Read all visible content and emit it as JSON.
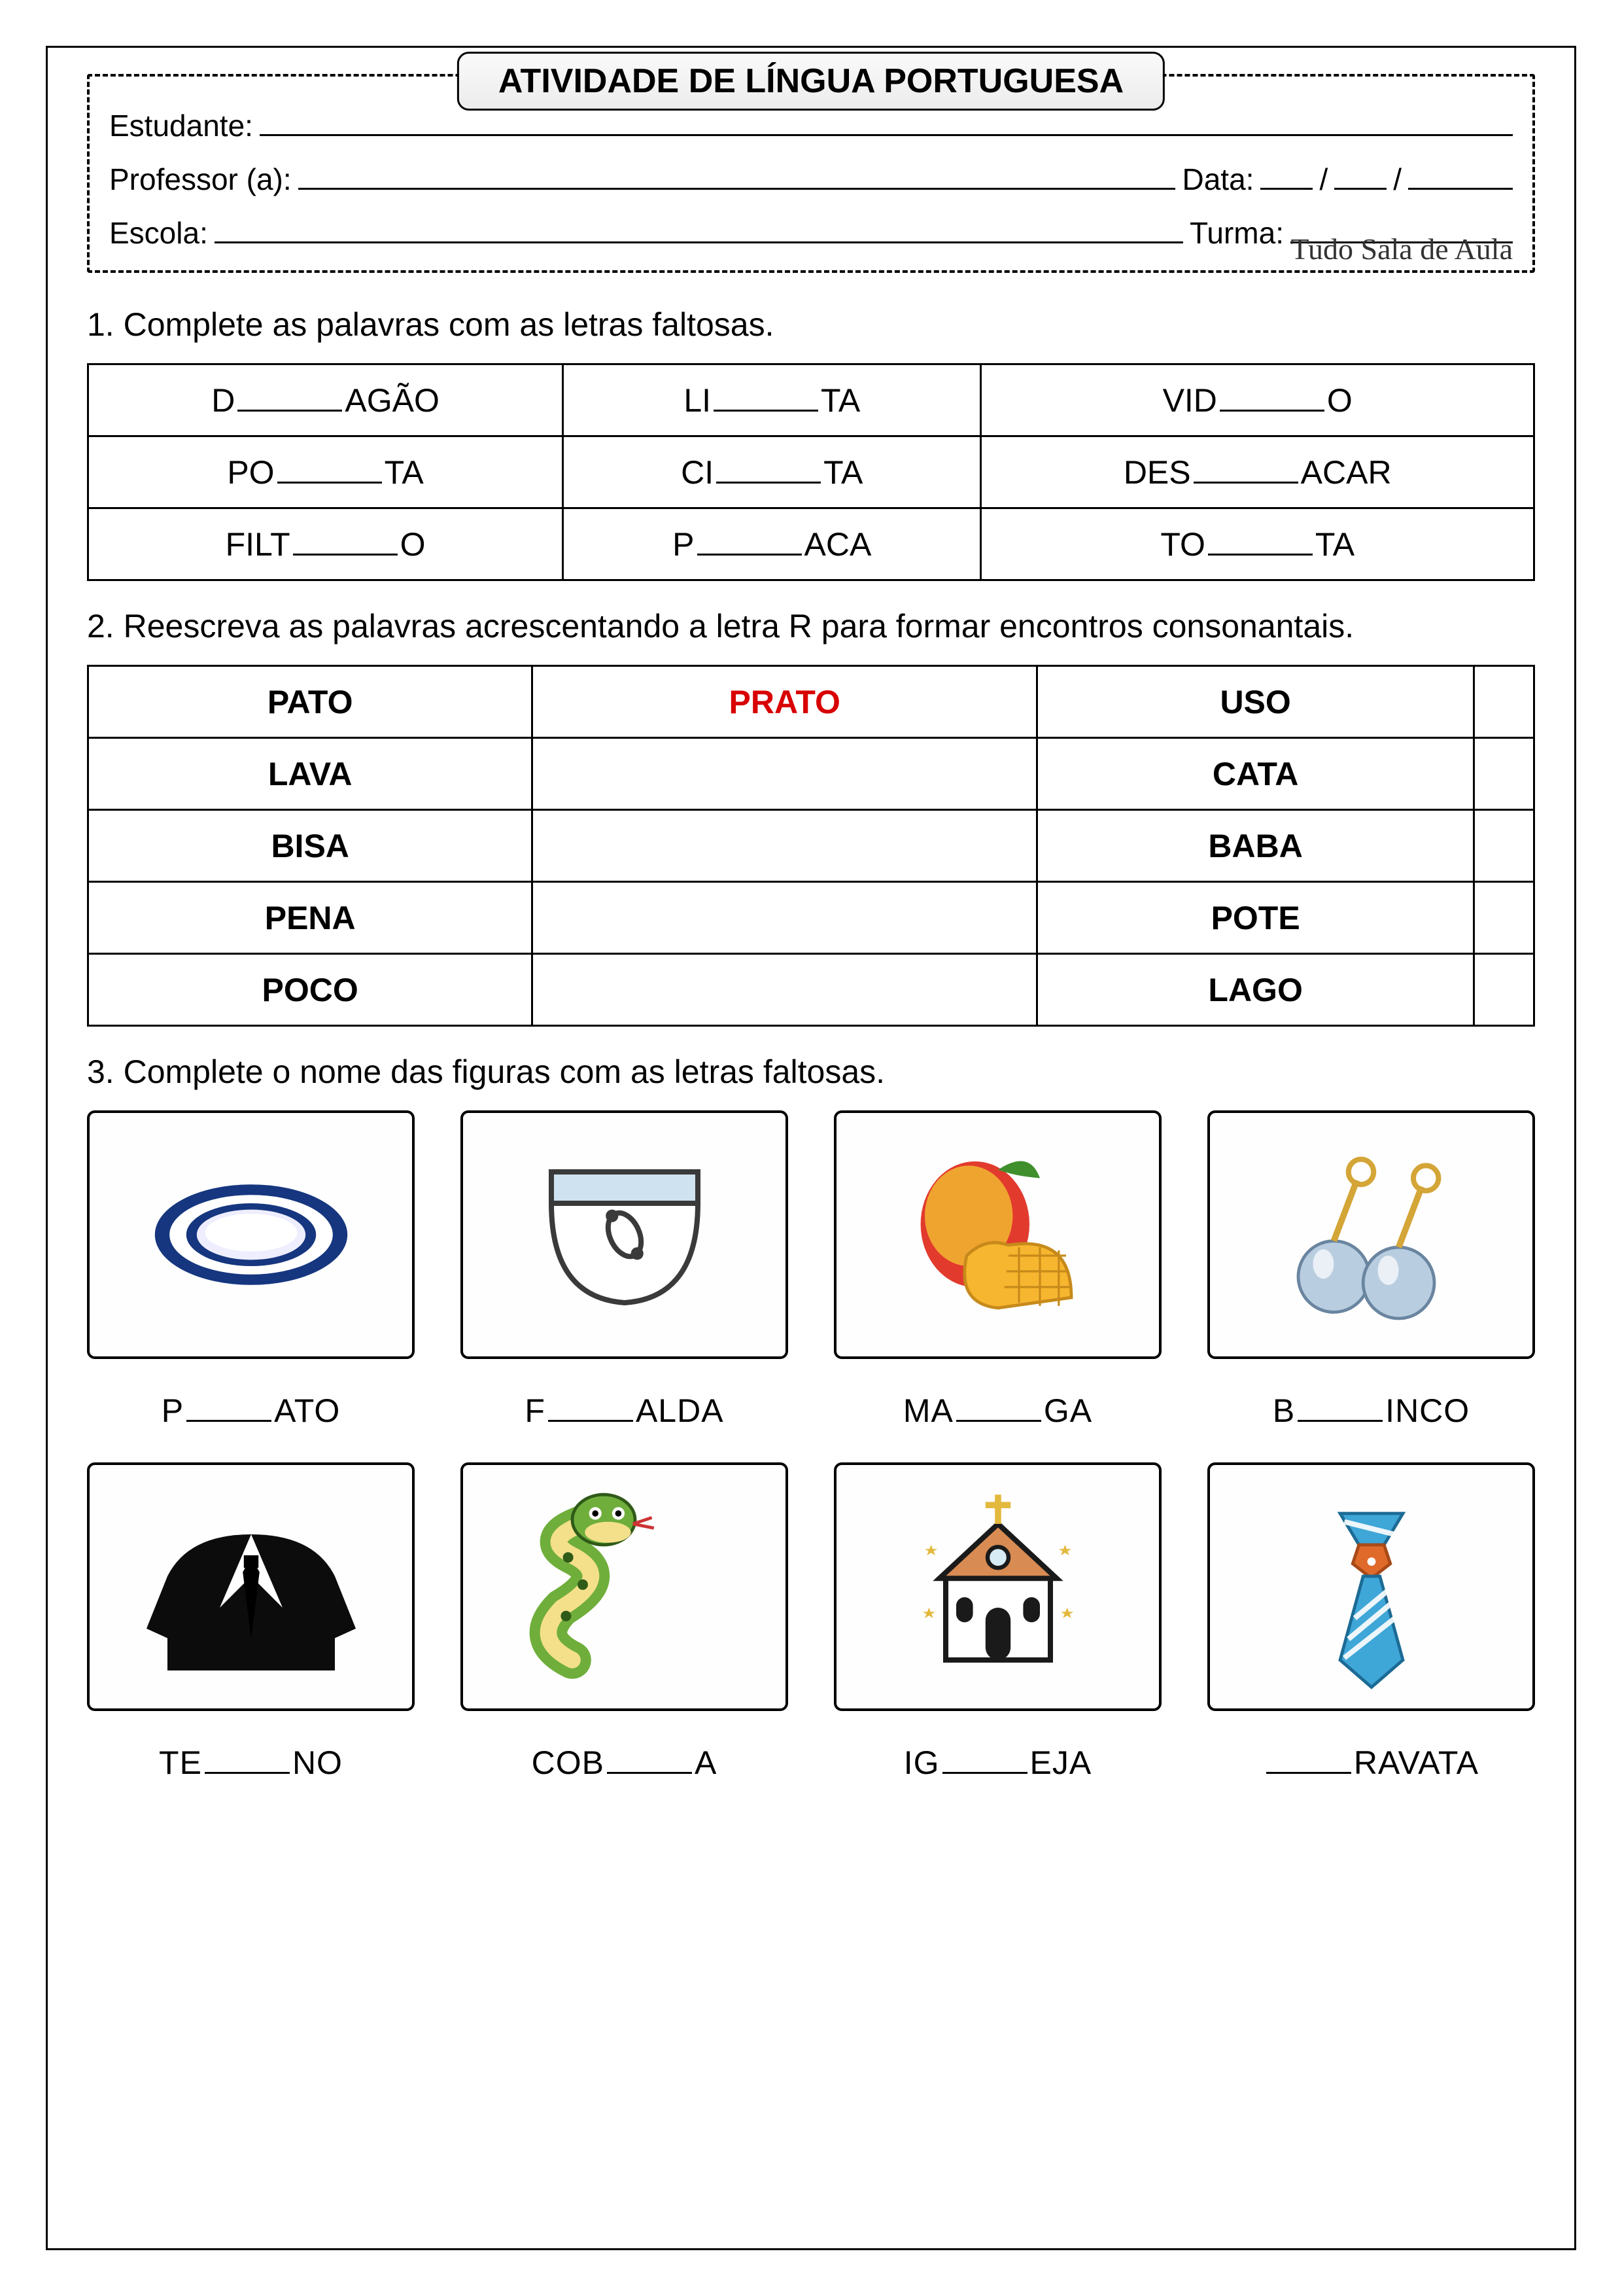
{
  "title": "ATIVIDADE DE LÍNGUA PORTUGUESA",
  "header": {
    "student": "Estudante:",
    "teacher": "Professor (a):",
    "date": "Data:",
    "school": "Escola:",
    "class": "Turma:",
    "logo": "Tudo Sala de Aula"
  },
  "q1": {
    "prompt": "1. Complete as palavras com as letras faltosas.",
    "cells": [
      [
        {
          "pre": "D",
          "post": "AGÃO"
        },
        {
          "pre": "LI",
          "post": "TA"
        },
        {
          "pre": "VID",
          "post": "O"
        }
      ],
      [
        {
          "pre": "PO",
          "post": "TA"
        },
        {
          "pre": "CI",
          "post": "TA"
        },
        {
          "pre": "DES",
          "post": "ACAR"
        }
      ],
      [
        {
          "pre": "FILT",
          "post": "O"
        },
        {
          "pre": "P",
          "post": "ACA"
        },
        {
          "pre": "TO",
          "post": "TA"
        }
      ]
    ]
  },
  "q2": {
    "prompt": "2. Reescreva as palavras acrescentando a letra R para formar encontros consonantais.",
    "rows": [
      {
        "a": "PATO",
        "b": "PRATO",
        "c": "USO",
        "d": ""
      },
      {
        "a": "LAVA",
        "b": "",
        "c": "CATA",
        "d": ""
      },
      {
        "a": "BISA",
        "b": "",
        "c": "BABA",
        "d": ""
      },
      {
        "a": "PENA",
        "b": "",
        "c": "POTE",
        "d": ""
      },
      {
        "a": "POCO",
        "b": "",
        "c": "LAGO",
        "d": ""
      }
    ],
    "highlight_color": "#d80000"
  },
  "q3": {
    "prompt": "3. Complete o nome das figuras com as letras faltosas.",
    "items": [
      {
        "pre": "P",
        "post": "ATO",
        "icon": "plate"
      },
      {
        "pre": "F",
        "post": "ALDA",
        "icon": "diaper"
      },
      {
        "pre": "MA",
        "post": "GA",
        "icon": "mango"
      },
      {
        "pre": "B",
        "post": "INCO",
        "icon": "earring"
      },
      {
        "pre": "TE",
        "post": "NO",
        "icon": "suit"
      },
      {
        "pre": "COB",
        "post": "A",
        "icon": "snake"
      },
      {
        "pre": "IG",
        "post": "EJA",
        "icon": "church"
      },
      {
        "pre": "",
        "post": "RAVATA",
        "icon": "tie"
      }
    ]
  },
  "colors": {
    "plate_rim": "#16367f",
    "plate_center": "#ffffff",
    "diaper_body": "#ffffff",
    "diaper_band": "#cfe2ef",
    "diaper_line": "#3a3a3a",
    "mango_skin": "#e23b2e",
    "mango_flesh": "#f7b62f",
    "mango_leaf": "#3f8f2d",
    "earring_ball": "#b8cde0",
    "earring_gold": "#d4a537",
    "suit_black": "#0c0c0c",
    "suit_shirt": "#ffffff",
    "snake_body": "#6fae3b",
    "snake_belly": "#f4e08b",
    "snake_dark": "#2f5a18",
    "church_wall": "#ffffff",
    "church_roof": "#d88b52",
    "church_line": "#1a1a1a",
    "church_gold": "#e3b93d",
    "tie_blue": "#3fa6d8",
    "tie_knot": "#e06a2a",
    "tie_stripe": "#ffffff"
  }
}
